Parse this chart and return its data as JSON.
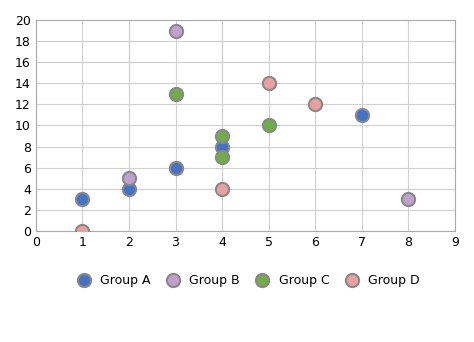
{
  "series": [
    {
      "label": "Group A",
      "x": [
        1,
        2,
        3,
        4,
        7
      ],
      "y": [
        3,
        4,
        6,
        8,
        11
      ],
      "color": "#4472C4",
      "marker": "o"
    },
    {
      "label": "Group B",
      "x": [
        2,
        3,
        8
      ],
      "y": [
        5,
        19,
        3
      ],
      "color": "#C0A0D0",
      "marker": "o"
    },
    {
      "label": "Group C",
      "x": [
        3,
        4,
        4,
        5
      ],
      "y": [
        13,
        9,
        7,
        10
      ],
      "color": "#70AD47",
      "marker": "o"
    },
    {
      "label": "Group D",
      "x": [
        1,
        4,
        5,
        6
      ],
      "y": [
        0,
        4,
        14,
        12
      ],
      "color": "#E8A0A0",
      "marker": "o"
    }
  ],
  "xlim": [
    0,
    9
  ],
  "ylim": [
    0,
    20
  ],
  "xticks": [
    0,
    1,
    2,
    3,
    4,
    5,
    6,
    7,
    8,
    9
  ],
  "yticks": [
    0,
    2,
    4,
    6,
    8,
    10,
    12,
    14,
    16,
    18,
    20
  ],
  "grid": true,
  "background_color": "#FFFFFF",
  "plot_bg_color": "#FFFFFF",
  "marker_size": 90,
  "marker_linewidth": 1.5,
  "legend_fontsize": 9,
  "tick_fontsize": 9
}
